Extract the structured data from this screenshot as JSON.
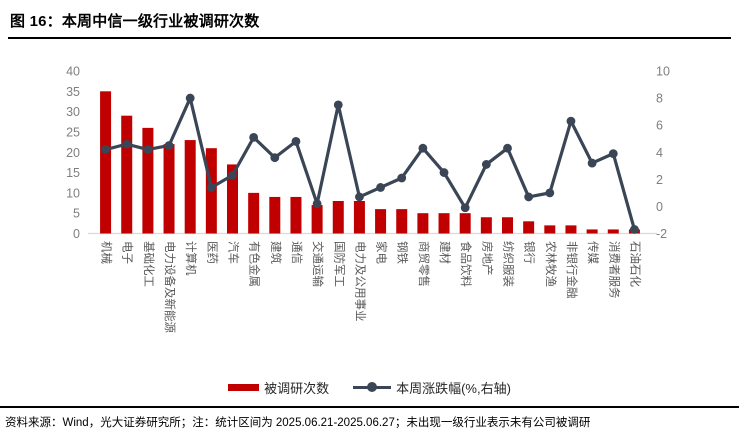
{
  "title": "图 16：本周中信一级行业被调研次数",
  "legend": {
    "bar_label": "被调研次数",
    "line_label": "本周涨跌幅(%,右轴)"
  },
  "source_note": "资料来源：Wind，光大证券研究所；注：统计区间为 2025.06.21-2025.06.27；未出现一级行业表示未有公司被调研",
  "colors": {
    "bar": "#C00000",
    "line": "#3A4656",
    "axis_text": "#7F7F7F",
    "category_text": "#595959",
    "baseline": "#D9D9D9",
    "title_text": "#000000"
  },
  "chart_data": {
    "type": "bar",
    "subtype": "bar-line-combo",
    "title": "本周中信一级行业被调研次数",
    "grid": false,
    "legend_position": "bottom",
    "categories": [
      "机械",
      "电子",
      "基础化工",
      "电力设备及新能源",
      "计算机",
      "医药",
      "汽车",
      "有色金属",
      "建筑",
      "通信",
      "交通运输",
      "国防军工",
      "电力及公用事业",
      "家电",
      "钢铁",
      "商贸零售",
      "建材",
      "食品饮料",
      "房地产",
      "纺织服装",
      "银行",
      "农林牧渔",
      "非银行金融",
      "传媒",
      "消费者服务",
      "石油石化"
    ],
    "series": [
      {
        "name": "被调研次数",
        "type": "bar",
        "axis": "left",
        "values": [
          35,
          29,
          26,
          22,
          23,
          21,
          17,
          10,
          9,
          9,
          7,
          8,
          8,
          6,
          6,
          5,
          5,
          5,
          4,
          4,
          3,
          2,
          2,
          1,
          1,
          1
        ]
      },
      {
        "name": "本周涨跌幅(%,右轴)",
        "type": "line",
        "axis": "right",
        "values": [
          4.2,
          4.6,
          4.2,
          4.5,
          8.0,
          1.4,
          2.3,
          5.1,
          3.6,
          4.8,
          0.2,
          7.5,
          0.7,
          1.4,
          2.1,
          4.3,
          2.5,
          -0.1,
          3.1,
          4.3,
          0.7,
          1.0,
          6.3,
          3.2,
          3.9,
          -1.7
        ]
      }
    ],
    "left_axis": {
      "label": "",
      "range": [
        0,
        40
      ],
      "ticks": [
        0,
        5,
        10,
        15,
        20,
        25,
        30,
        35,
        40
      ]
    },
    "right_axis": {
      "label": "",
      "range": [
        -2,
        10
      ],
      "ticks": [
        -2,
        0,
        2,
        4,
        6,
        8,
        10
      ]
    }
  }
}
